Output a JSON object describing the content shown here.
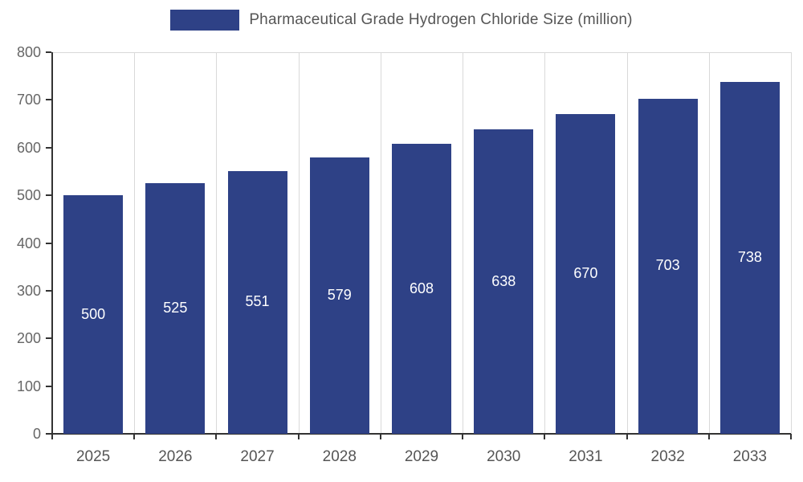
{
  "chart_data": {
    "type": "bar",
    "title": "Pharmaceutical Grade Hydrogen Chloride Size (million)",
    "categories": [
      "2025",
      "2026",
      "2027",
      "2028",
      "2029",
      "2030",
      "2031",
      "2032",
      "2033"
    ],
    "values": [
      500,
      525,
      551,
      579,
      608,
      638,
      670,
      703,
      738
    ],
    "xlabel": "",
    "ylabel": "",
    "ylim": [
      0,
      800
    ],
    "ytick_step": 100,
    "grid": "vertical-light",
    "legend_position": "top-center",
    "bar_color": "#2e4186",
    "value_label_color": "#ffffff",
    "value_label_position": "bar-center"
  }
}
